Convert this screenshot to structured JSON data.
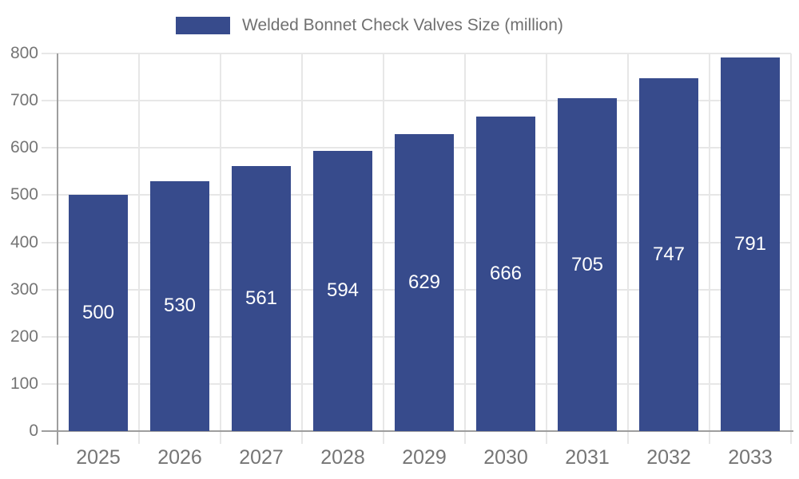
{
  "legend": {
    "label": "Welded Bonnet Check Valves Size (million)"
  },
  "chart_data": {
    "type": "bar",
    "title": "",
    "categories": [
      "2025",
      "2026",
      "2027",
      "2028",
      "2029",
      "2030",
      "2031",
      "2032",
      "2033"
    ],
    "series": [
      {
        "name": "Welded Bonnet Check Valves Size (million)",
        "values": [
          500,
          530,
          561,
          594,
          629,
          666,
          705,
          747,
          791
        ]
      }
    ],
    "xlabel": "",
    "ylabel": "",
    "ylim": [
      0,
      800
    ],
    "yticks": [
      0,
      100,
      200,
      300,
      400,
      500,
      600,
      700,
      800
    ],
    "grid": true,
    "legend_position": "top-center",
    "value_label_position": "inside-center",
    "colors": {
      "bar": "#374B8C",
      "value_label": "#FFFFFF",
      "axis_text": "#757575",
      "legend_text": "#707070",
      "gridline": "#E7E7E7",
      "axis_line": "#9E9E9E",
      "background": "#FFFFFF"
    }
  }
}
